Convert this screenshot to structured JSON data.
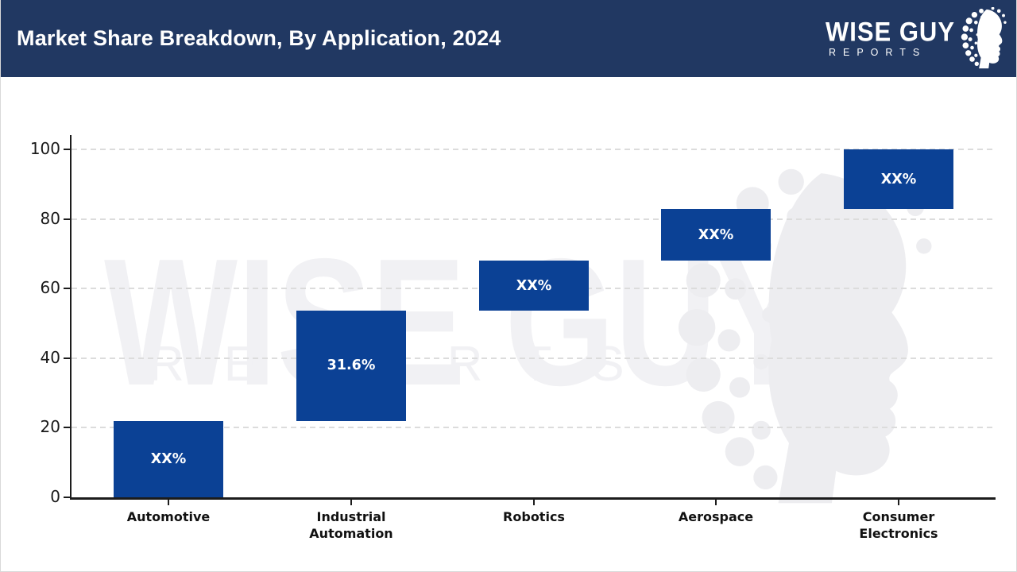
{
  "header": {
    "title": "Market Share Breakdown, By Application, 2024",
    "bg_color": "#213862",
    "logo": {
      "line1": "WISE GUY",
      "line2": "REPORTS",
      "icon": "dotted-head-profile"
    }
  },
  "watermark": {
    "line1": "WISE GUY",
    "line2": "REPORTS",
    "icon": "dotted-head-profile"
  },
  "chart_data": {
    "type": "bar",
    "subtype": "floating-waterfall",
    "title": "Market Share Breakdown, By Application, 2024",
    "categories": [
      "Automotive",
      "Industrial Automation",
      "Robotics",
      "Aerospace",
      "Consumer Electronics"
    ],
    "segments": [
      {
        "category": "Automotive",
        "start": 0,
        "end": 22,
        "value": 22,
        "label": "XX%"
      },
      {
        "category": "Industrial Automation",
        "start": 22,
        "end": 53.6,
        "value": 31.6,
        "label": "31.6%"
      },
      {
        "category": "Robotics",
        "start": 53.6,
        "end": 68,
        "value": 14.4,
        "label": "XX%"
      },
      {
        "category": "Aerospace",
        "start": 68,
        "end": 82.8,
        "value": 14.8,
        "label": "XX%"
      },
      {
        "category": "Consumer Electronics",
        "start": 82.8,
        "end": 100,
        "value": 17.2,
        "label": "XX%"
      }
    ],
    "ylim": [
      0,
      100
    ],
    "yticks": [
      0,
      20,
      40,
      60,
      80,
      100
    ],
    "xlabel": "",
    "ylabel": "",
    "grid": "horizontal-dashed",
    "legend": null,
    "bar_color": "#0b4195",
    "bar_label_color": "#ffffff",
    "axis_color": "#1c1c1c"
  }
}
